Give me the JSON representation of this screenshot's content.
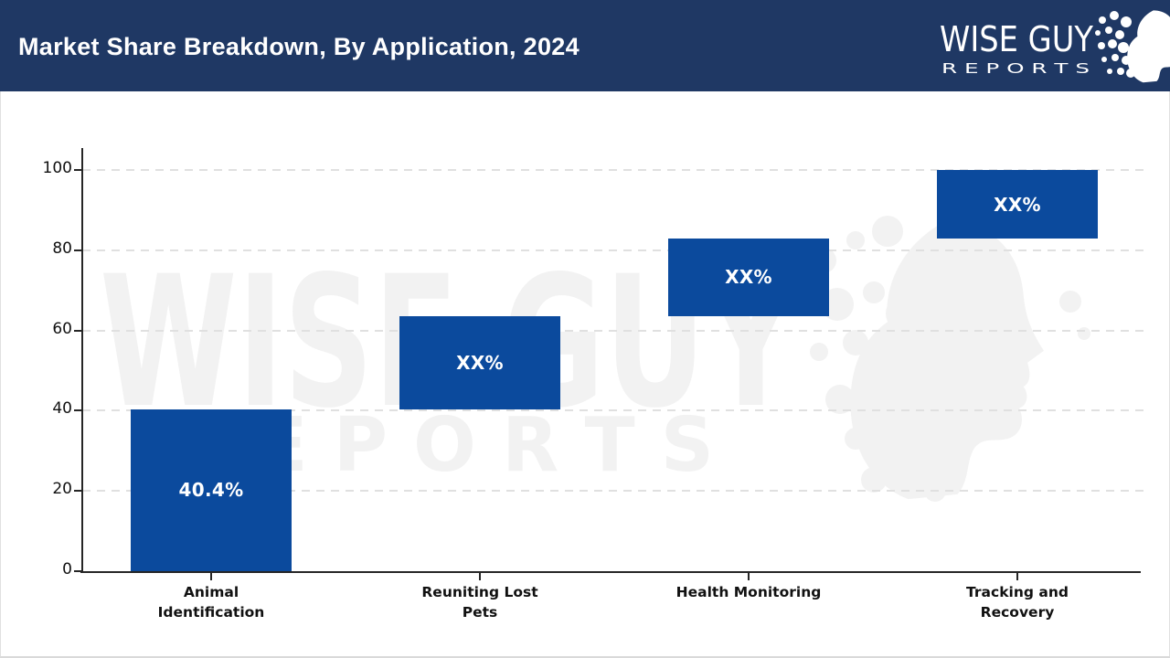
{
  "header": {
    "title": "Market Share Breakdown, By Application, 2024",
    "logo": {
      "line1": "WISE GUY",
      "line2": "R E P O R T S"
    }
  },
  "watermark": {
    "line1": "WISE GUY",
    "line2": "R E P O R T S"
  },
  "chart_data": {
    "type": "bar",
    "subtype": "waterfall",
    "title": "Market Share Breakdown, By Application, 2024",
    "xlabel": "",
    "ylabel": "",
    "ylim": [
      0,
      100
    ],
    "y_ticks": [
      0,
      20,
      40,
      60,
      80,
      100
    ],
    "grid": "horizontal-dashed",
    "legend": "none",
    "categories": [
      "Animal Identification",
      "Reuniting Lost Pets",
      "Health Monitoring",
      "Tracking and Recovery"
    ],
    "categories_lines": [
      [
        "Animal",
        "Identification"
      ],
      [
        "Reuniting Lost",
        "Pets"
      ],
      [
        "Health Monitoring"
      ],
      [
        "Tracking and",
        "Recovery"
      ]
    ],
    "bars": [
      {
        "category": "Animal Identification",
        "start": 0,
        "end": 40.4,
        "label": "40.4%"
      },
      {
        "category": "Reuniting Lost Pets",
        "start": 40.4,
        "end": 63.6,
        "label": "XX%"
      },
      {
        "category": "Health Monitoring",
        "start": 63.6,
        "end": 82.9,
        "label": "XX%"
      },
      {
        "category": "Tracking and Recovery",
        "start": 82.9,
        "end": 99.9,
        "label": "XX%"
      }
    ],
    "bar_color": "#0b4a9d",
    "bar_label_color": "#ffffff"
  },
  "colors": {
    "header_bg": "#1f3864",
    "bar": "#0b4a9d",
    "watermark": "#f2f2f2",
    "gridline": "#e0e0e0",
    "axis": "#262626"
  }
}
